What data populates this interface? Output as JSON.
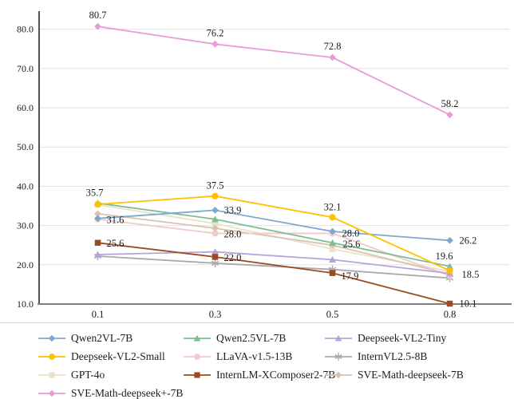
{
  "chart_data": {
    "type": "line",
    "title": "",
    "xlabel": "",
    "ylabel": "",
    "x_categories": [
      "0.1",
      "0.3",
      "0.5",
      "0.8"
    ],
    "y_axis": {
      "min": 10,
      "max": 80,
      "tick_step": 10,
      "tick_labels": [
        "10.0",
        "20.0",
        "30.0",
        "40.0",
        "50.0",
        "60.0",
        "70.0",
        "80.0"
      ]
    },
    "grid": "horizontal",
    "legend_position": "bottom",
    "series": [
      {
        "name": "Qwen2VL-7B",
        "color": "#7FA8CF",
        "marker": "diamond",
        "values": [
          31.8,
          33.9,
          28.5,
          26.2
        ],
        "labels": [
          {
            "i": 1,
            "text": "33.9",
            "dx": 11,
            "dy": 4,
            "anchor": "start"
          },
          {
            "i": 3,
            "text": "26.2",
            "dx": 12,
            "dy": 4,
            "anchor": "start"
          }
        ]
      },
      {
        "name": "Qwen2.5VL-7B",
        "color": "#7DBD96",
        "marker": "triangle",
        "values": [
          35.7,
          31.6,
          25.6,
          19.6
        ],
        "labels": [
          {
            "i": 0,
            "text": "35.7",
            "dx": -4,
            "dy": -9,
            "anchor": "middle"
          },
          {
            "i": 2,
            "text": "25.6",
            "dx": 13,
            "dy": 6,
            "anchor": "start"
          },
          {
            "i": 3,
            "text": "19.6",
            "dx": -7,
            "dy": -9,
            "anchor": "middle"
          }
        ]
      },
      {
        "name": "Deepseek-VL2-Tiny",
        "color": "#B7A3DB",
        "marker": "triangle",
        "values": [
          22.6,
          23.3,
          21.3,
          17.8
        ],
        "labels": []
      },
      {
        "name": "Deepseek-VL2-Small",
        "color": "#FFC000",
        "marker": "circle",
        "values": [
          35.4,
          37.5,
          32.1,
          18.5
        ],
        "labels": [
          {
            "i": 1,
            "text": "37.5",
            "dx": 0,
            "dy": -9,
            "anchor": "middle"
          },
          {
            "i": 2,
            "text": "32.1",
            "dx": 0,
            "dy": -9,
            "anchor": "middle"
          },
          {
            "i": 3,
            "text": "18.5",
            "dx": 15,
            "dy": 9,
            "anchor": "start"
          }
        ]
      },
      {
        "name": "LLaVA-v1.5-13B",
        "color": "#F0CACC",
        "marker": "circle",
        "values": [
          31.6,
          28.0,
          28.0,
          17.2
        ],
        "labels": [
          {
            "i": 0,
            "text": "31.6",
            "dx": 11,
            "dy": 5,
            "anchor": "start"
          },
          {
            "i": 1,
            "text": "28.0",
            "dx": 11,
            "dy": 5,
            "anchor": "start"
          },
          {
            "i": 2,
            "text": "28.0",
            "dx": 12,
            "dy": 4,
            "anchor": "start"
          }
        ]
      },
      {
        "name": "InternVL2.5-8B",
        "color": "#A9A9A9",
        "marker": "asterisk",
        "values": [
          22.2,
          20.4,
          18.8,
          16.6
        ],
        "labels": []
      },
      {
        "name": "GPT-4o",
        "color": "#E9E2C4",
        "marker": "square",
        "values": [
          35.3,
          30.5,
          24.0,
          18.3
        ],
        "labels": []
      },
      {
        "name": "InternLM-XComposer2-7B",
        "color": "#9C4A21",
        "marker": "square",
        "values": [
          25.6,
          22.0,
          17.9,
          10.1
        ],
        "labels": [
          {
            "i": 0,
            "text": "25.6",
            "dx": 11,
            "dy": 5,
            "anchor": "start"
          },
          {
            "i": 1,
            "text": "22.0",
            "dx": 11,
            "dy": 5,
            "anchor": "start"
          },
          {
            "i": 2,
            "text": "17.9",
            "dx": 11,
            "dy": 8,
            "anchor": "start"
          },
          {
            "i": 3,
            "text": "10.1",
            "dx": 12,
            "dy": 4,
            "anchor": "start"
          }
        ]
      },
      {
        "name": "SVE-Math-deepseek-7B",
        "color": "#D7C3B0",
        "marker": "diamond",
        "values": [
          33.0,
          29.3,
          25.0,
          17.6
        ],
        "labels": []
      },
      {
        "name": "SVE-Math-deepseek+-7B",
        "color": "#E79CD5",
        "marker": "diamond",
        "values": [
          80.7,
          76.2,
          72.8,
          58.2
        ],
        "labels": [
          {
            "i": 0,
            "text": "80.7",
            "dx": 0,
            "dy": -10,
            "anchor": "middle"
          },
          {
            "i": 1,
            "text": "76.2",
            "dx": 0,
            "dy": -10,
            "anchor": "middle"
          },
          {
            "i": 2,
            "text": "72.8",
            "dx": 0,
            "dy": -10,
            "anchor": "middle"
          },
          {
            "i": 3,
            "text": "58.2",
            "dx": 0,
            "dy": -10,
            "anchor": "middle"
          }
        ]
      }
    ],
    "draw_order": [
      6,
      8,
      5,
      4,
      2,
      1,
      0,
      3,
      7,
      9
    ],
    "style": {
      "grid_color": "#e2e2e2",
      "y_axis_color": "#3f3f3f",
      "x_axis_color": "#7f7f7f",
      "label_color": "#141414",
      "tick_color": "#1c1c1c"
    }
  }
}
